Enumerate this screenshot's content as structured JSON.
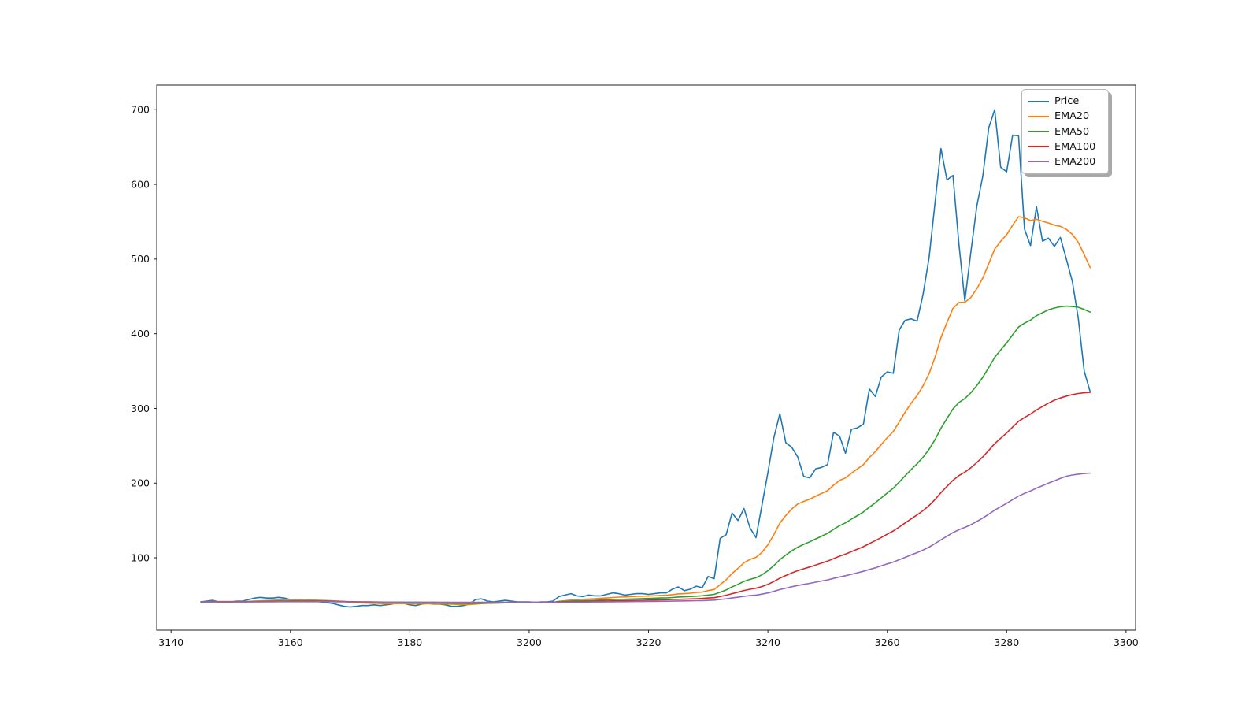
{
  "chart_data": {
    "type": "line",
    "title": "",
    "xlabel": "",
    "ylabel": "",
    "grid": false,
    "background_color": "#ffffff",
    "spine_color": "#222222",
    "xlim": [
      3137.6,
      3301.6
    ],
    "ylim": [
      3,
      733
    ],
    "xticks": [
      {
        "value": 3140,
        "label": "3140"
      },
      {
        "value": 3160,
        "label": "3160"
      },
      {
        "value": 3180,
        "label": "3180"
      },
      {
        "value": 3200,
        "label": "3200"
      },
      {
        "value": 3220,
        "label": "3220"
      },
      {
        "value": 3240,
        "label": "3240"
      },
      {
        "value": 3260,
        "label": "3260"
      },
      {
        "value": 3280,
        "label": "3280"
      },
      {
        "value": 3300,
        "label": "3300"
      }
    ],
    "yticks": [
      {
        "value": 100,
        "label": "100"
      },
      {
        "value": 200,
        "label": "200"
      },
      {
        "value": 300,
        "label": "300"
      },
      {
        "value": 400,
        "label": "400"
      },
      {
        "value": 500,
        "label": "500"
      },
      {
        "value": 600,
        "label": "600"
      },
      {
        "value": 700,
        "label": "700"
      }
    ],
    "legend": {
      "position": "upper-right"
    },
    "x_start": 3145,
    "x_step": 1,
    "series": [
      {
        "name": "Price",
        "color": "#1f77b4",
        "values": [
          41,
          42,
          43,
          41,
          41,
          41,
          42,
          42,
          44,
          46,
          47,
          46,
          46,
          47,
          46,
          44,
          43,
          44,
          43,
          42,
          41,
          40,
          39,
          37,
          35,
          34,
          35,
          36,
          36,
          37,
          36,
          37,
          38,
          40,
          39,
          37,
          36,
          38,
          39,
          38,
          38,
          37,
          35,
          35,
          36,
          38,
          44,
          45,
          42,
          41,
          42,
          43,
          42,
          41,
          41,
          41,
          40,
          41,
          41,
          42,
          48,
          50,
          52,
          49,
          48,
          50,
          49,
          49,
          51,
          53,
          52,
          50,
          51,
          52,
          52,
          51,
          52,
          53,
          53,
          58,
          61,
          56,
          58,
          62,
          60,
          75,
          72,
          126,
          131,
          160,
          150,
          166,
          140,
          127,
          170,
          214,
          261,
          293,
          254,
          248,
          235,
          209,
          207,
          219,
          221,
          225,
          268,
          263,
          240,
          272,
          274,
          279,
          326,
          316,
          342,
          349,
          347,
          405,
          418,
          420,
          417,
          453,
          502,
          575,
          648,
          606,
          612,
          520,
          444,
          509,
          571,
          611,
          676,
          700,
          623,
          617,
          666,
          665,
          540,
          518,
          570,
          524,
          528,
          517,
          529,
          500,
          470,
          421,
          350,
          322
        ]
      },
      {
        "name": "EMA20",
        "color": "#ff7f0e",
        "values": [
          41,
          41.2,
          41.4,
          41.4,
          41.4,
          41.4,
          41.4,
          41.5,
          41.6,
          41.9,
          42.3,
          42.7,
          43,
          43.3,
          43.5,
          43.6,
          43.5,
          43.5,
          43.4,
          43.3,
          43.1,
          42.8,
          42.4,
          41.9,
          41.3,
          40.6,
          40.1,
          39.6,
          39.3,
          39.1,
          38.8,
          38.6,
          38.6,
          38.7,
          38.7,
          38.6,
          38.4,
          38.3,
          38.3,
          38.3,
          38.2,
          38.1,
          37.8,
          37.5,
          37.4,
          37.4,
          38,
          38.7,
          39,
          39.2,
          39.4,
          39.8,
          40,
          40.1,
          40.2,
          40.2,
          40.2,
          40.3,
          40.3,
          40.5,
          41.7,
          42.5,
          43.4,
          43.9,
          44.3,
          44.8,
          45.2,
          45.6,
          46.1,
          46.8,
          47.3,
          47.5,
          47.9,
          48.3,
          48.6,
          48.8,
          49.1,
          49.5,
          49.8,
          50.6,
          51.6,
          52,
          52.6,
          53.5,
          54.1,
          56.1,
          57.6,
          64.1,
          70.5,
          79,
          85.8,
          93.4,
          97.8,
          100.6,
          107.2,
          117.4,
          131.1,
          146.5,
          156.7,
          165.4,
          172,
          175.5,
          178.5,
          182.4,
          186.1,
          189.8,
          197.2,
          203.5,
          207,
          213.2,
          219,
          224.7,
          234.3,
          242.1,
          251.6,
          260.9,
          269.1,
          282,
          295,
          306.9,
          317.4,
          330.3,
          346.6,
          368.4,
          395,
          415.1,
          433.8,
          442,
          442.2,
          448.6,
          460.2,
          474.6,
          493.8,
          513.4,
          523.8,
          532.7,
          545.4,
          556.8,
          555.2,
          551.6,
          553.4,
          550.6,
          548.4,
          545.4,
          543.9,
          539.7,
          533.1,
          522.4,
          506,
          488.5
        ]
      },
      {
        "name": "EMA50",
        "color": "#2ca02c",
        "values": [
          41,
          41,
          41.1,
          41.1,
          41.1,
          41.1,
          41.2,
          41.2,
          41.3,
          41.4,
          41.5,
          41.7,
          41.8,
          41.9,
          42,
          42.1,
          42.1,
          42.1,
          42.1,
          42.1,
          42,
          41.9,
          41.8,
          41.6,
          41.4,
          41.1,
          40.9,
          40.7,
          40.5,
          40.3,
          40.1,
          40,
          39.9,
          39.9,
          39.8,
          39.7,
          39.6,
          39.5,
          39.5,
          39.4,
          39.4,
          39.3,
          39.2,
          39,
          38.9,
          38.9,
          39,
          39.3,
          39.4,
          39.5,
          39.6,
          39.7,
          39.8,
          39.9,
          39.9,
          40,
          40,
          40.1,
          40.1,
          40.2,
          41.3,
          41.6,
          42,
          42.3,
          42.5,
          42.8,
          43.1,
          43.3,
          43.6,
          44,
          44.3,
          44.5,
          44.8,
          45,
          45.3,
          45.5,
          45.8,
          46.1,
          46.3,
          46.8,
          47.4,
          47.7,
          48.1,
          48.6,
          49.1,
          50.1,
          51,
          53.9,
          56.9,
          61,
          64.5,
          68.4,
          71.2,
          73.4,
          77.2,
          82.6,
          89.6,
          97.5,
          103.7,
          109.3,
          114.2,
          118,
          121.4,
          125.3,
          129,
          132.8,
          138.1,
          143,
          146.8,
          151.7,
          156.5,
          161.3,
          167.8,
          173.6,
          180.2,
          186.8,
          193.1,
          201.4,
          209.9,
          218.1,
          225.9,
          234.8,
          245.3,
          258.2,
          273.5,
          286.5,
          299.3,
          307.9,
          313.3,
          320.9,
          330.7,
          341.7,
          354.8,
          368.4,
          378.3,
          387.7,
          398.6,
          409,
          414.2,
          418.2,
          424.2,
          428.1,
          432,
          434.5,
          436.2,
          437,
          436.5,
          435.5,
          432.5,
          429
        ]
      },
      {
        "name": "EMA100",
        "color": "#d62728",
        "values": [
          41,
          41,
          41,
          41,
          41,
          41,
          41,
          41.1,
          41.1,
          41.2,
          41.2,
          41.3,
          41.4,
          41.5,
          41.5,
          41.6,
          41.6,
          41.6,
          41.6,
          41.6,
          41.6,
          41.6,
          41.5,
          41.4,
          41.3,
          41.2,
          41.1,
          41,
          40.9,
          40.8,
          40.7,
          40.6,
          40.6,
          40.5,
          40.5,
          40.4,
          40.4,
          40.3,
          40.3,
          40.3,
          40.2,
          40.2,
          40.1,
          40.1,
          40,
          40,
          40,
          40.1,
          40.1,
          40.2,
          40.2,
          40.2,
          40.3,
          40.3,
          40.3,
          40.3,
          40.3,
          40.4,
          40.4,
          40.4,
          40.6,
          40.8,
          41,
          41.2,
          41.3,
          41.5,
          41.7,
          41.8,
          42,
          42.2,
          42.4,
          42.6,
          42.8,
          43,
          43.1,
          43.3,
          43.4,
          43.6,
          43.8,
          44.1,
          44.4,
          44.6,
          44.9,
          45.2,
          45.5,
          46.1,
          46.6,
          48.2,
          49.8,
          52,
          54,
          56.2,
          57.9,
          59.2,
          61.4,
          64.4,
          68.3,
          72.7,
          76.3,
          79.7,
          82.8,
          85.3,
          87.7,
          90.3,
          92.9,
          95.5,
          98.9,
          102.2,
          104.9,
          108.2,
          111.5,
          114.8,
          119,
          122.9,
          127.2,
          131.6,
          135.9,
          141.2,
          146.7,
          152.1,
          157.4,
          163.2,
          169.9,
          178,
          187.3,
          195.6,
          203.8,
          210.1,
          214.7,
          220.5,
          227.5,
          235.1,
          243.8,
          252.8,
          260.1,
          267.2,
          275.1,
          282.8,
          287.9,
          292.5,
          298,
          302.5,
          307,
          311,
          314,
          316.5,
          318.5,
          320,
          321,
          321.5
        ]
      },
      {
        "name": "EMA200",
        "color": "#9467bd",
        "values": [
          41,
          41,
          41,
          41,
          41,
          41,
          41,
          41,
          41,
          41,
          41.1,
          41.1,
          41.1,
          41.2,
          41.2,
          41.2,
          41.2,
          41.2,
          41.2,
          41.2,
          41.2,
          41.2,
          41.2,
          41.1,
          41.1,
          41,
          41,
          40.9,
          40.9,
          40.8,
          40.8,
          40.7,
          40.7,
          40.7,
          40.6,
          40.6,
          40.6,
          40.5,
          40.5,
          40.5,
          40.5,
          40.4,
          40.4,
          40.4,
          40.3,
          40.3,
          40.3,
          40.3,
          40.3,
          40.3,
          40.3,
          40.3,
          40.3,
          40.3,
          40.3,
          40.3,
          40.3,
          40.3,
          40.3,
          40.3,
          40.4,
          40.5,
          40.6,
          40.7,
          40.7,
          40.8,
          40.9,
          40.9,
          41,
          41.1,
          41.2,
          41.2,
          41.3,
          41.4,
          41.4,
          41.5,
          41.6,
          41.7,
          41.8,
          41.9,
          42.1,
          42.2,
          42.4,
          42.6,
          42.7,
          43,
          43.3,
          44.1,
          45,
          46.1,
          47.2,
          48.4,
          49.3,
          50.1,
          51.3,
          52.9,
          55,
          57.4,
          59.3,
          61.2,
          62.9,
          64.4,
          65.8,
          67.3,
          68.9,
          70.4,
          72.4,
          74.3,
          76,
          77.9,
          79.9,
          81.9,
          84.3,
          86.6,
          89.2,
          91.8,
          94.3,
          97.4,
          100.6,
          103.8,
          106.9,
          110.4,
          114.3,
          118.9,
          124.1,
          128.9,
          133.7,
          137.6,
          140.7,
          144.3,
          148.6,
          153.2,
          158.4,
          163.8,
          168.4,
          172.9,
          177.8,
          182.6,
          186.2,
          189.5,
          193.3,
          196.6,
          199.9,
          203,
          206.3,
          209.2,
          210.8,
          212,
          212.8,
          213.5
        ]
      }
    ]
  }
}
